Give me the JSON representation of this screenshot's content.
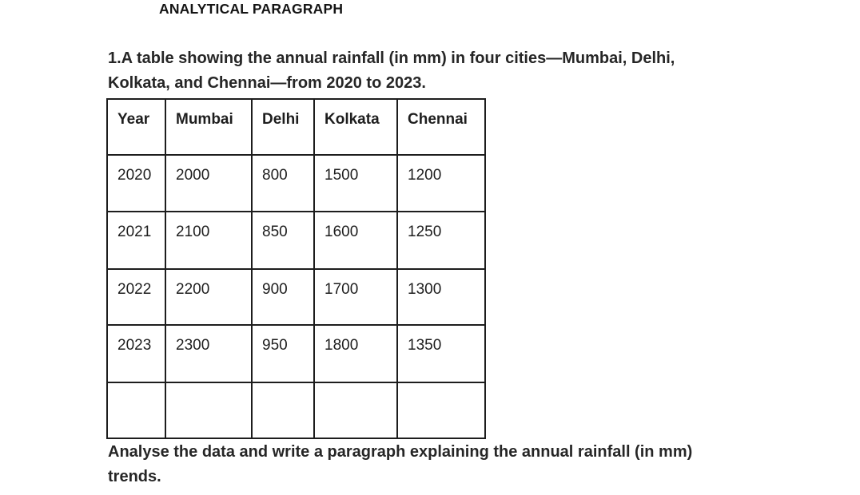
{
  "page": {
    "title": "ANALYTICAL PARAGRAPH",
    "question_lines": [
      "1.A table showing the annual rainfall (in mm) in four cities—Mumbai, Delhi,",
      "Kolkata, and Chennai—from 2020 to 2023."
    ],
    "instruction_lines": [
      "Analyse the data and write a paragraph explaining the annual rainfall (in mm)",
      "trends."
    ]
  },
  "table": {
    "headers": [
      "Year",
      "Mumbai",
      "Delhi",
      "Kolkata",
      "Chennai"
    ],
    "rows": [
      [
        "2020",
        "2000",
        "800",
        "1500",
        "1200"
      ],
      [
        "2021",
        "2100",
        "850",
        "1600",
        "1250"
      ],
      [
        "2022",
        "2200",
        "900",
        "1700",
        "1300"
      ],
      [
        "2023",
        "2300",
        "950",
        "1800",
        "1350"
      ],
      [
        "",
        "",
        "",
        "",
        ""
      ]
    ]
  },
  "chart_data": {
    "type": "table",
    "title": "Annual rainfall (in mm) in four cities from 2020 to 2023",
    "categories": [
      "2020",
      "2021",
      "2022",
      "2023"
    ],
    "series": [
      {
        "name": "Mumbai",
        "values": [
          2000,
          2100,
          2200,
          2300
        ]
      },
      {
        "name": "Delhi",
        "values": [
          800,
          850,
          900,
          950
        ]
      },
      {
        "name": "Kolkata",
        "values": [
          1500,
          1600,
          1700,
          1800
        ]
      },
      {
        "name": "Chennai",
        "values": [
          1200,
          1250,
          1300,
          1350
        ]
      }
    ]
  }
}
